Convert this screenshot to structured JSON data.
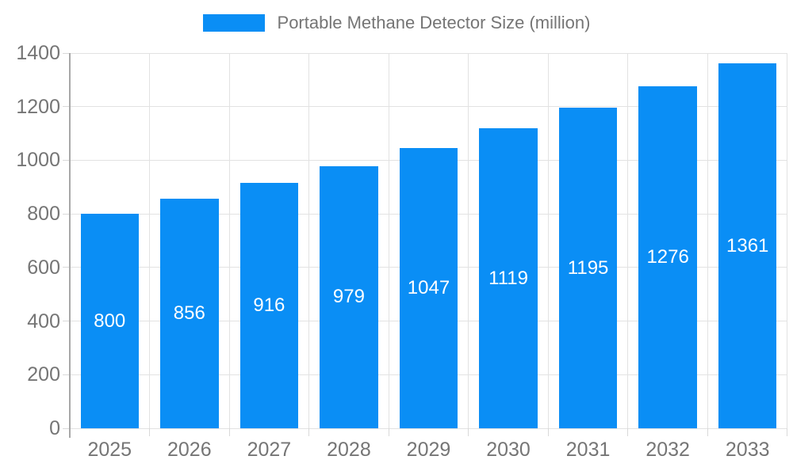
{
  "chart_data": {
    "type": "bar",
    "title": "Portable Methane Detector Size (million)",
    "categories": [
      "2025",
      "2026",
      "2027",
      "2028",
      "2029",
      "2030",
      "2031",
      "2032",
      "2033"
    ],
    "values": [
      800,
      856,
      916,
      979,
      1047,
      1119,
      1195,
      1276,
      1361
    ],
    "xlabel": "",
    "ylabel": "",
    "ylim": [
      0,
      1400
    ],
    "yticks": [
      0,
      200,
      400,
      600,
      800,
      1000,
      1200,
      1400
    ],
    "grid": true,
    "legend_position": "top-center",
    "bar_label_position": "inside-center",
    "colors": {
      "bar": "#0a8ef5",
      "bar_label": "#ffffff",
      "axis_text": "#757575",
      "gridline": "#e2e2e2",
      "tick": "#d9d9d9",
      "axis_line": "#a8a8a8",
      "background": "#ffffff"
    }
  }
}
